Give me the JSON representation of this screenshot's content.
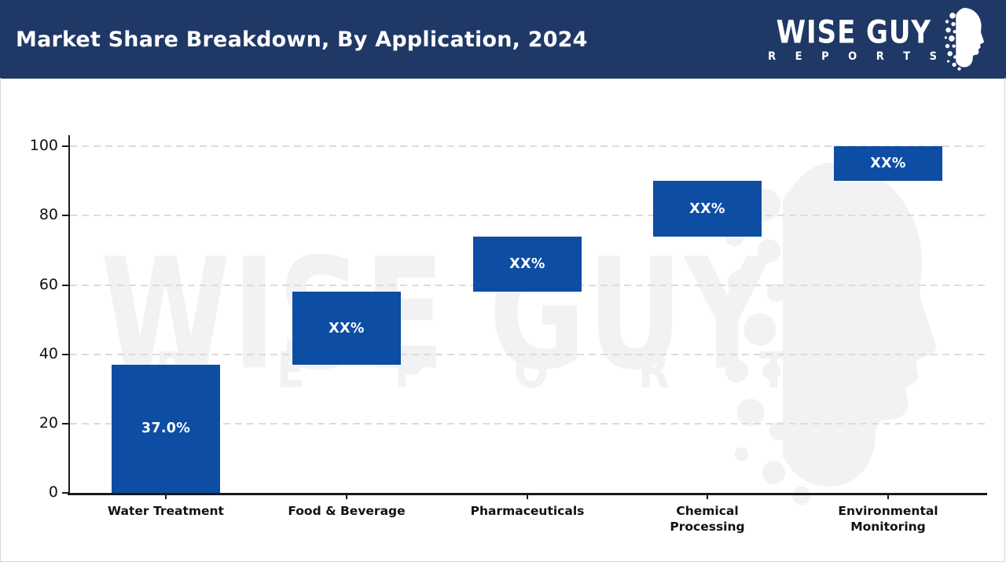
{
  "header": {
    "title": "Market Share Breakdown, By Application, 2024",
    "background_color": "#1f3865",
    "logo": {
      "line1": "WISE GUY",
      "line2": "R E P O R T S",
      "icon": "dotted-head-profile"
    }
  },
  "watermark": {
    "line1": "WISE GUY",
    "line2": "R E P O R T S",
    "icon": "dotted-head-profile"
  },
  "chart_data": {
    "type": "bar",
    "subtype": "waterfall",
    "title": "Market Share Breakdown, By Application, 2024",
    "categories": [
      "Water Treatment",
      "Food & Beverage",
      "Pharmaceuticals",
      "Chemical\nProcessing",
      "Environmental\nMonitoring"
    ],
    "values": [
      37,
      21,
      16,
      16,
      10
    ],
    "cumulative_ranges": [
      [
        0,
        37
      ],
      [
        37,
        58
      ],
      [
        58,
        74
      ],
      [
        74,
        90
      ],
      [
        90,
        100
      ]
    ],
    "bar_labels": [
      "37.0%",
      "XX%",
      "XX%",
      "XX%",
      "XX%"
    ],
    "yticks": [
      0,
      20,
      40,
      60,
      80,
      100
    ],
    "ylim": [
      0,
      105
    ],
    "xlabel": "",
    "ylabel": "",
    "grid": "horizontal-dashed",
    "legend": "none",
    "bar_color": "#0d4da4",
    "bar_label_color": "#ffffff",
    "axis_color": "#1a1a1a",
    "gridline_color": "#dcdcdc"
  }
}
